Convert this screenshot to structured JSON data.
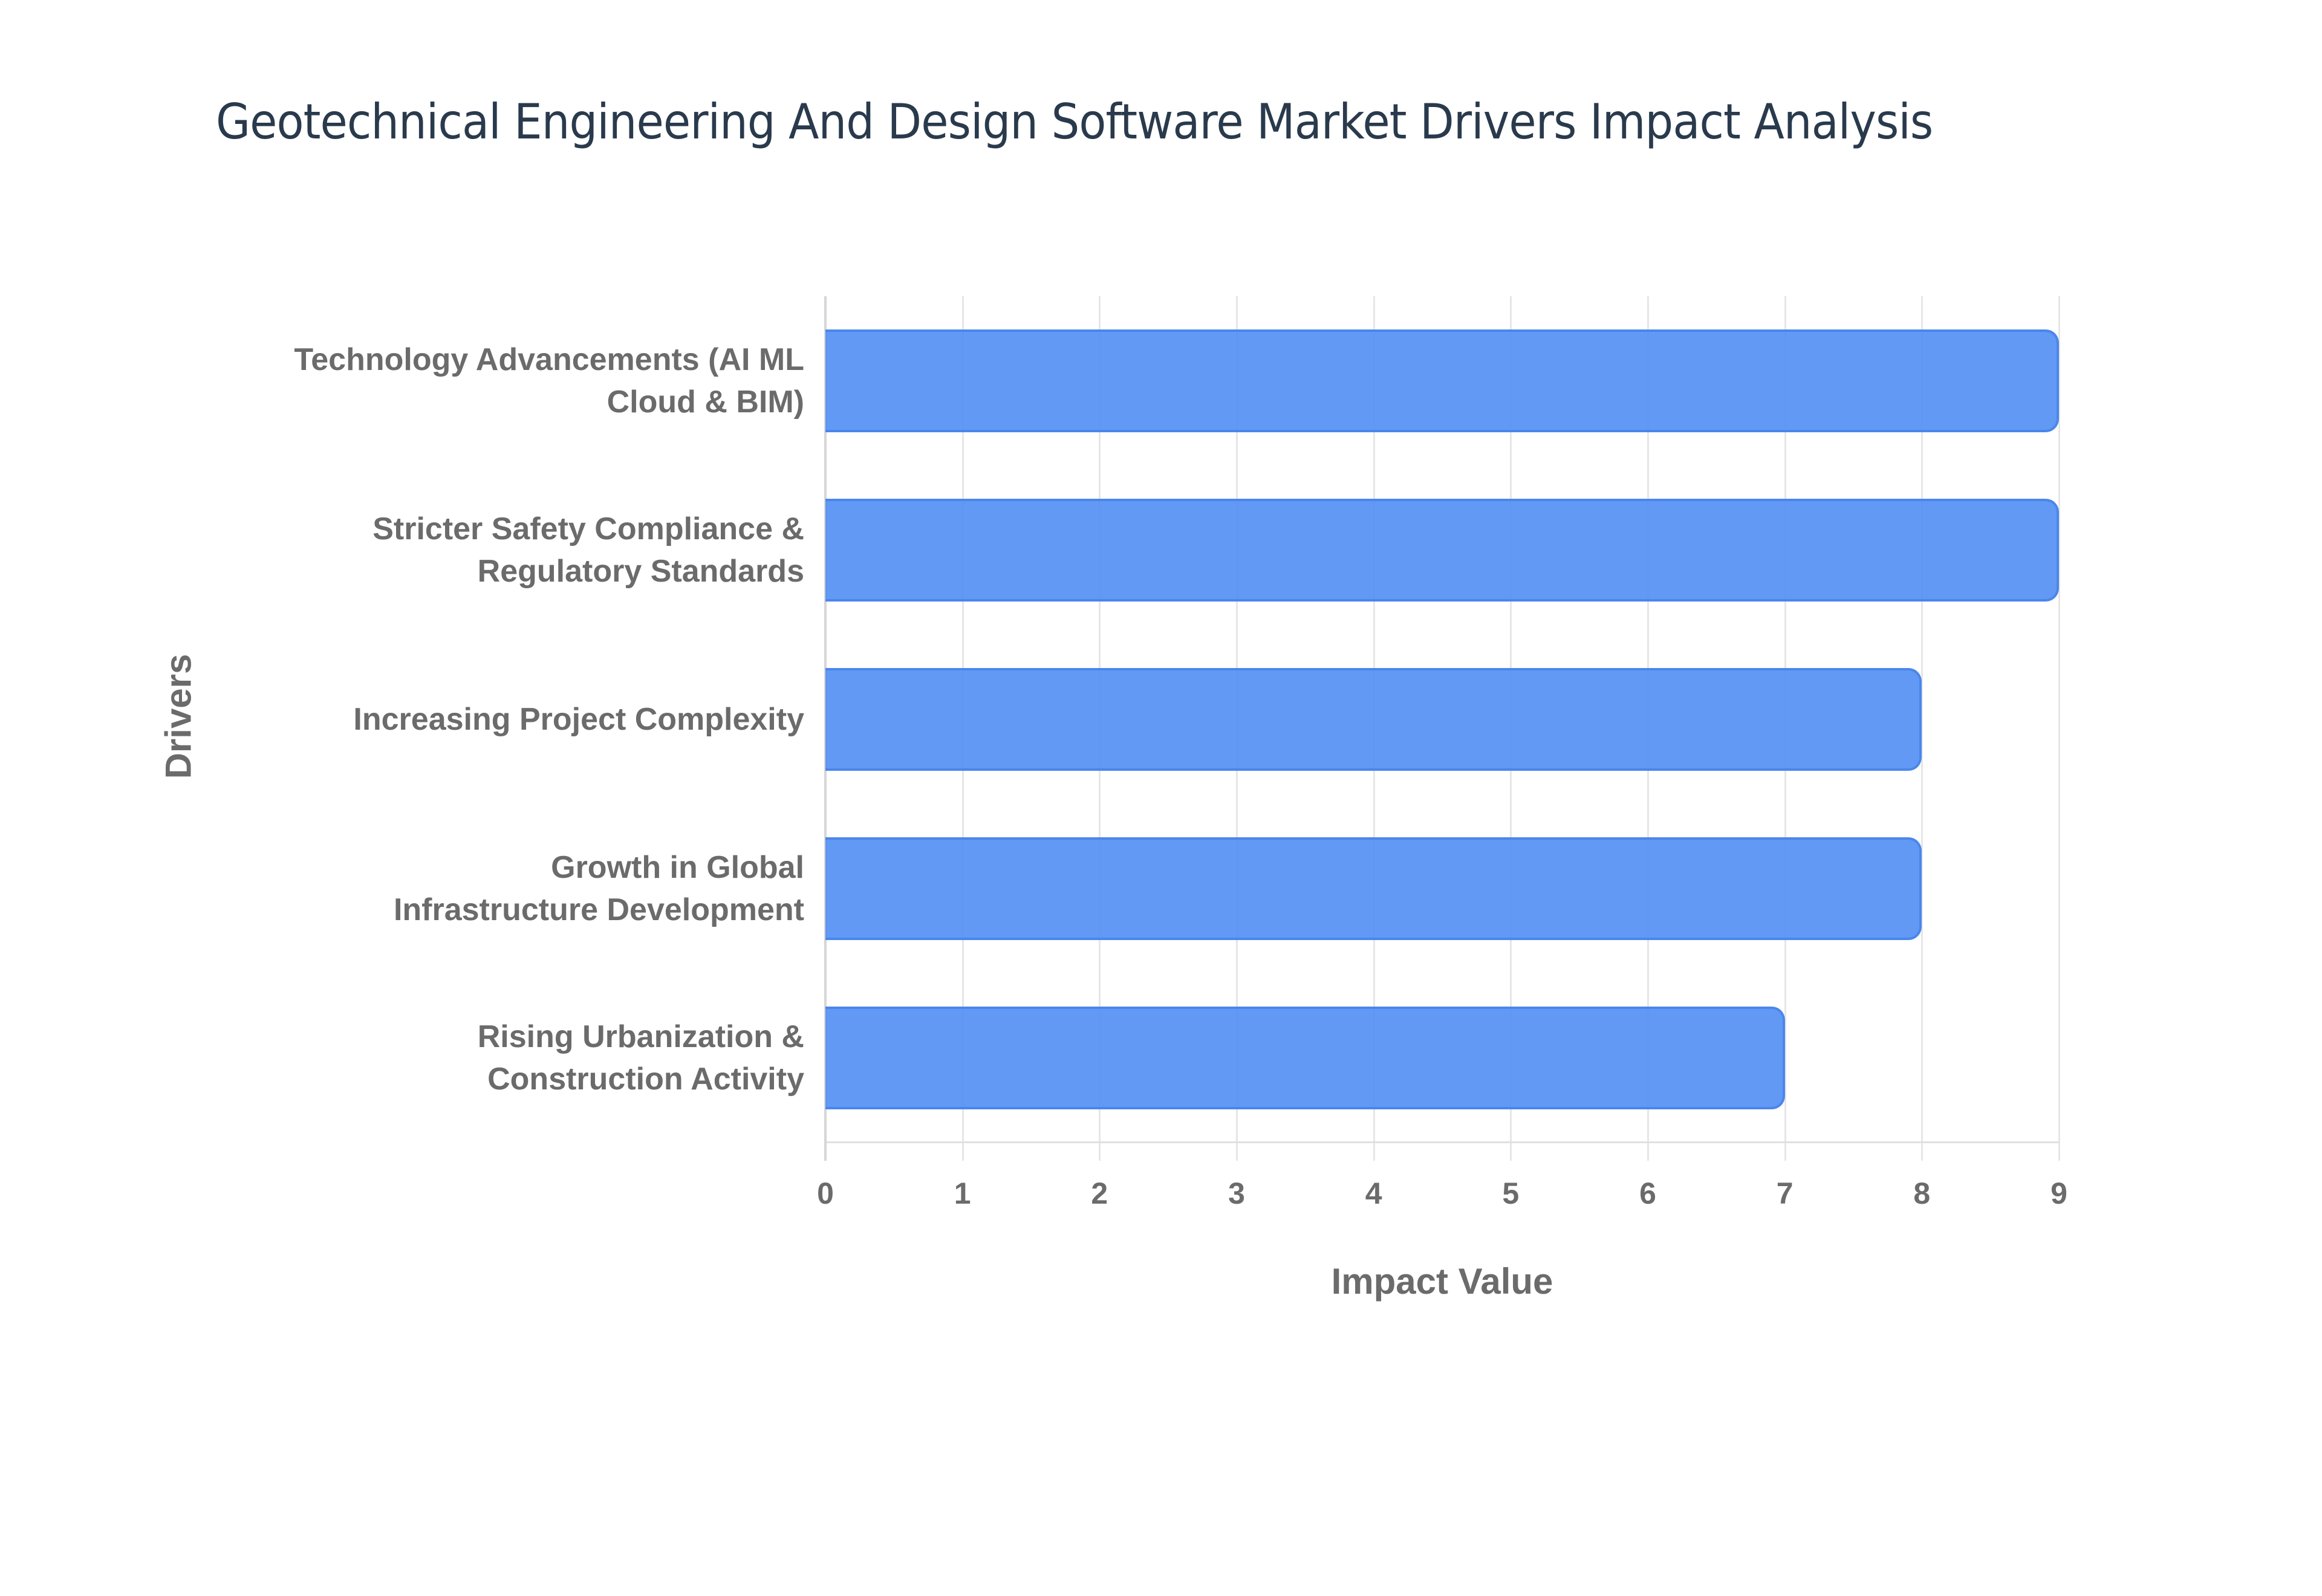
{
  "chart_data": {
    "type": "bar",
    "orientation": "horizontal",
    "title": "Geotechnical Engineering And Design Software Market Drivers Impact Analysis",
    "xlabel": "Impact Value",
    "ylabel": "Drivers",
    "xlim": [
      0,
      9
    ],
    "x_ticks": [
      "0",
      "1",
      "2",
      "3",
      "4",
      "5",
      "6",
      "7",
      "8",
      "9"
    ],
    "grid": true,
    "legend": null,
    "bar_color": "#5B95F2",
    "bar_border_color": "#4A86EC",
    "categories": [
      "Technology Advancements (AI ML Cloud & BIM)",
      "Stricter Safety Compliance & Regulatory Standards",
      "Increasing Project Complexity",
      "Growth in Global Infrastructure Development",
      "Rising Urbanization & Construction Activity"
    ],
    "values": [
      9,
      9,
      8,
      8,
      7
    ]
  },
  "labels": {
    "cat0_line1": "Technology Advancements (AI ML",
    "cat0_line2": "Cloud & BIM)",
    "cat1_line1": "Stricter Safety Compliance &",
    "cat1_line2": "Regulatory Standards",
    "cat2_line1": "Increasing Project Complexity",
    "cat3_line1": "Growth in Global",
    "cat3_line2": "Infrastructure Development",
    "cat4_line1": "Rising Urbanization &",
    "cat4_line2": "Construction Activity"
  }
}
